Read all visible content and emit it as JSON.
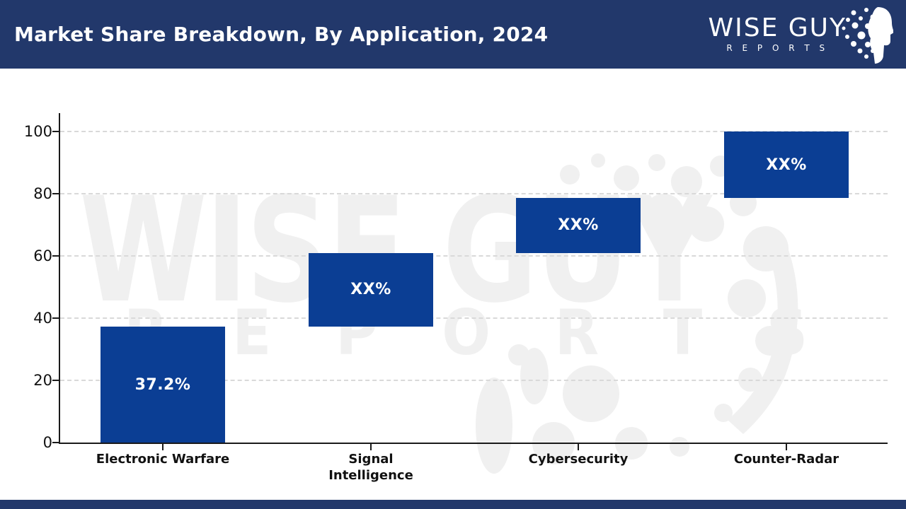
{
  "header": {
    "title": "Market Share Breakdown, By Application, 2024",
    "logo": {
      "name": "WISE GUY",
      "sub": "R E P O R T S"
    }
  },
  "watermark": {
    "line1": "WISE GUY",
    "line2": "R E P O R T S"
  },
  "colors": {
    "header_bg": "#22386B",
    "footer_bg": "#22386B",
    "bar": "#0B3E94",
    "grid": "#D9D9D9",
    "axis": "#1A1A1A",
    "watermark": "#F0F0F0",
    "bar_label": "#FFFFFF"
  },
  "chart_data": {
    "type": "bar",
    "subtype": "floating-waterfall",
    "title": "Market Share Breakdown, By Application, 2024",
    "categories": [
      "Electronic Warfare",
      "Signal Intelligence",
      "Cybersecurity",
      "Counter-Radar"
    ],
    "category_lines": [
      [
        "Electronic Warfare"
      ],
      [
        "Signal",
        "Intelligence"
      ],
      [
        "Cybersecurity"
      ],
      [
        "Counter-Radar"
      ]
    ],
    "segments": [
      {
        "category": "Electronic Warfare",
        "from": 0,
        "to": 37.2,
        "label": "37.2%"
      },
      {
        "category": "Signal Intelligence",
        "from": 37.2,
        "to": 61,
        "label": "XX%"
      },
      {
        "category": "Cybersecurity",
        "from": 61,
        "to": 78.6,
        "label": "XX%"
      },
      {
        "category": "Counter-Radar",
        "from": 78.6,
        "to": 100,
        "label": "XX%"
      }
    ],
    "yticks": [
      0,
      20,
      40,
      60,
      80,
      100
    ],
    "ylim": [
      0,
      107
    ],
    "xlabel": "",
    "ylabel": "",
    "grid": "dashed-horizontal",
    "legend": "none"
  }
}
